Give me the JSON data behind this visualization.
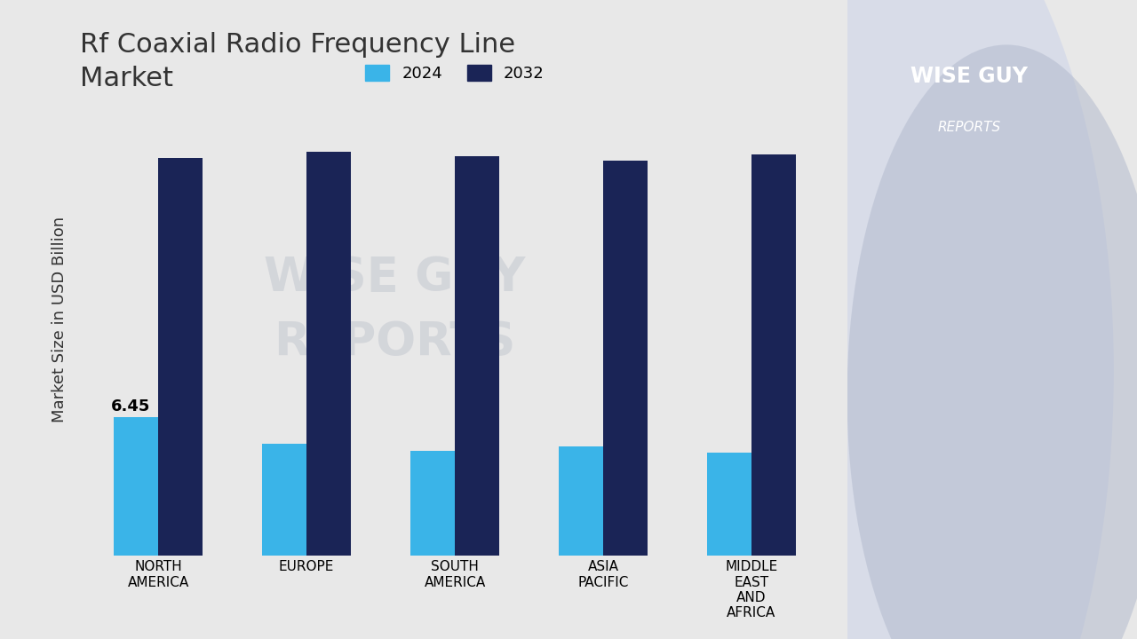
{
  "title": "Rf Coaxial Radio Frequency Line\nMarket",
  "ylabel": "Market Size in USD Billion",
  "categories": [
    "NORTH\nAMERICA",
    "EUROPE",
    "SOUTH\nAMERICA",
    "ASIA\nPACIFIC",
    "MIDDLE\nEAST\nAND\nAFRICA"
  ],
  "values_2024": [
    6.45,
    5.2,
    4.9,
    5.1,
    4.8
  ],
  "values_2032": [
    18.5,
    18.8,
    18.6,
    18.4,
    18.7
  ],
  "color_2024": "#3ab4e8",
  "color_2032": "#1a2456",
  "annotation_2024": "6.45",
  "bar_width": 0.3,
  "bg_color": "#e8e8e8",
  "right_panel_color": "#1a2456",
  "title_color": "#333333",
  "ylim": [
    0,
    22
  ],
  "legend_labels": [
    "2024",
    "2032"
  ],
  "title_fontsize": 22,
  "ylabel_fontsize": 13,
  "tick_fontsize": 11,
  "wiseguy_line1": "WISE GUY",
  "wiseguy_line2": "REPORTS"
}
